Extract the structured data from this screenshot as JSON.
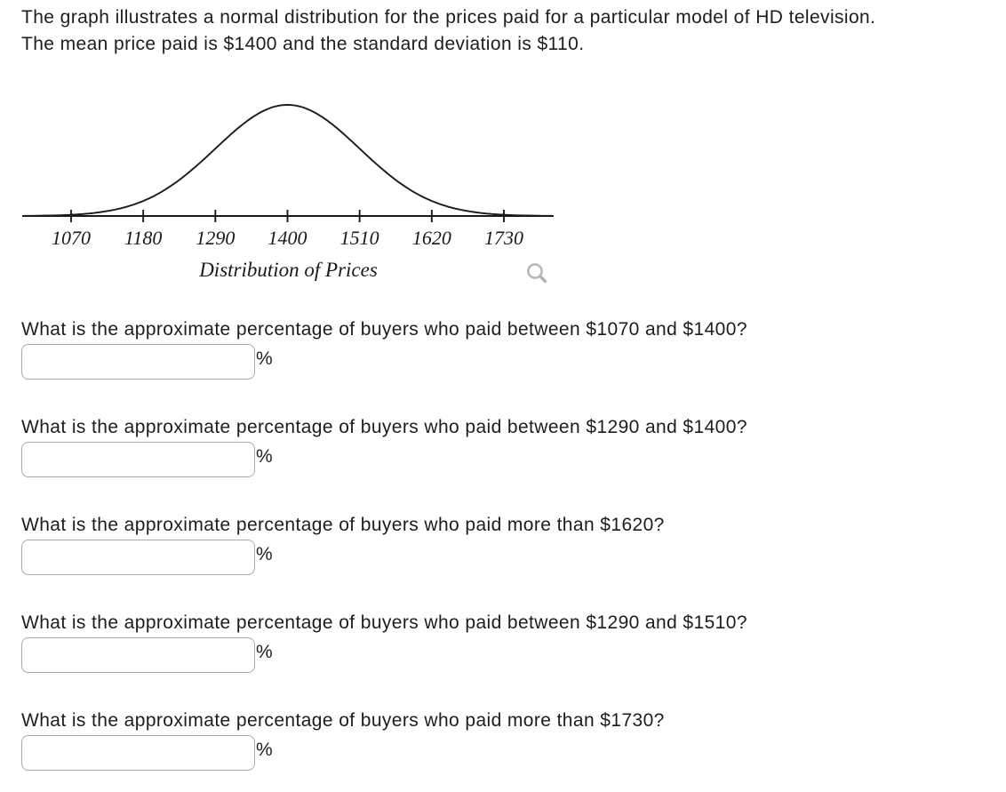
{
  "intro": {
    "text": "The graph illustrates a normal distribution for the prices paid for a particular model of HD television.\nThe mean price paid is $1400 and the standard deviation is $110."
  },
  "chart_data": {
    "type": "line",
    "subtype": "normal-distribution-curve",
    "title": "Distribution of Prices",
    "mean": 1400,
    "std": 110,
    "x_ticks": [
      1070,
      1180,
      1290,
      1400,
      1510,
      1620,
      1730
    ],
    "x_range": [
      1000,
      1805
    ],
    "grid": false,
    "legend": false,
    "curve_color": "#1a1a1a",
    "axis_color": "#1a1a1a"
  },
  "graph": {
    "zoom_icon": "magnifying-glass",
    "zoom_icon_color": "#b3b3b3"
  },
  "questions": [
    {
      "text": "What is the approximate percentage of buyers who paid between $1070 and $1400?",
      "input_value": "",
      "unit": "%"
    },
    {
      "text": "What is the approximate percentage of buyers who paid between $1290 and $1400?",
      "input_value": "",
      "unit": "%"
    },
    {
      "text": "What is the approximate percentage of buyers who paid more than $1620?",
      "input_value": "",
      "unit": "%"
    },
    {
      "text": "What is the approximate percentage of buyers who paid between $1290 and $1510?",
      "input_value": "",
      "unit": "%"
    },
    {
      "text": "What is the approximate percentage of buyers who paid more than $1730?",
      "input_value": "",
      "unit": "%"
    }
  ]
}
